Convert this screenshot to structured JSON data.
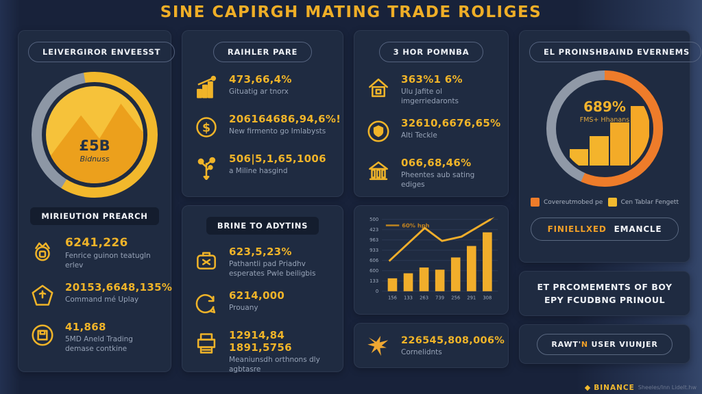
{
  "title": "SINE CAPIRGH MATING TRADE ROLIGES",
  "colors": {
    "background": "#18223a",
    "card": "#1f2b41",
    "accent_yellow": "#f0b429",
    "accent_orange": "#ee7c2a",
    "ring_gray": "#8d97a5",
    "label_gray": "#97a3b7"
  },
  "col1": {
    "header": "LEIVERGIROR ENVEESST",
    "donut": {
      "center_value": "£5B",
      "center_label": "Bidnuss"
    },
    "section2": "MIRIEUTION PREARCH",
    "stats": [
      {
        "icon": "crown-badge-icon",
        "value": "6241,226",
        "label": "Fenrice guinon teatugln erlev"
      },
      {
        "icon": "pentagon-shield-icon",
        "value": "20153,6648,135%",
        "label": "Command mé Uplay"
      },
      {
        "icon": "floppy-circle-icon",
        "value": "41,868",
        "label": "5MD Aneld Trading demase contkine"
      }
    ]
  },
  "col2": {
    "header": "RAIHLER PARE",
    "stats": [
      {
        "icon": "bar-chart-flag-icon",
        "value": "473,66,4%",
        "label": "Gituatig ar tnorx"
      },
      {
        "icon": "dollar-coin-icon",
        "value": "206164686,94,6%!",
        "label": "New firmento go Imlabysts"
      },
      {
        "icon": "sprout-icon",
        "value": "506|5,1,65,1006",
        "label": "a Miline hasgind"
      }
    ],
    "section2": "BRINE TO ADYTINS",
    "stats2": [
      {
        "icon": "briefcase-icon",
        "value": "623,5,23%",
        "label": "Pathantli pad Priadhv esperates Pwle beiligbis"
      },
      {
        "icon": "refresh-arrows-icon",
        "value": "6214,000",
        "label": "Prouany"
      },
      {
        "icon": "printer-icon",
        "value": "12914,84 1891,5756",
        "label": "Meaniunsdh orthnons dly agbtasre"
      }
    ]
  },
  "col3": {
    "header": "3 HOR POMNBA",
    "stats": [
      {
        "icon": "house-icon",
        "value": "363%1 6%",
        "label": "Ulu Jafite ol imgerriedaronts"
      },
      {
        "icon": "coin-shield-icon",
        "value": "32610,6676,65%",
        "label": "Alti Teckle"
      },
      {
        "icon": "bank-icon",
        "value": "066,68,46%",
        "label": "Pheentes aub sating ediges"
      }
    ],
    "bottom_stat": {
      "icon": "eagle-icon",
      "value": "226545,808,006%",
      "label": "Cornelidnts"
    }
  },
  "chart_data": {
    "type": "bar+line",
    "title": "",
    "legend": "60% hph",
    "legend_position": "top-left",
    "grid": true,
    "ylim": [
      0,
      500
    ],
    "y_ticks": [
      "0",
      "133",
      "600",
      "606",
      "933",
      "963",
      "423",
      "500"
    ],
    "x_labels": [
      "156",
      "133",
      "263",
      "739",
      "256",
      "291",
      "308"
    ],
    "series": [
      {
        "name": "bars",
        "type": "bar",
        "values": [
          90,
          125,
          165,
          150,
          235,
          315,
          410
        ]
      },
      {
        "name": "trend",
        "type": "line",
        "x_frac": [
          0.03,
          0.36,
          0.52,
          0.7,
          0.97
        ],
        "values": [
          210,
          440,
          350,
          380,
          500
        ]
      }
    ]
  },
  "col4": {
    "header": "EL PROINSHBAIND EVERNEMS",
    "donut": {
      "center_value": "689%",
      "center_label": "FMS+ Hhanans"
    },
    "legend": [
      {
        "color": "#ee7c2a",
        "label": "Covereutmobed pe"
      },
      {
        "color": "#f3ba2f",
        "label": "Cen Tablar Fengett"
      }
    ],
    "button1": {
      "part1": "FINIELLXED",
      "part2": "EMANCLE"
    },
    "panel_line1": "ET PRCOMEMENTS OF BOY",
    "panel_line2": "EPY FCUDBNG PRINOUL",
    "button2": {
      "part1": "RAWT'",
      "part2": "N",
      "part3": " USER VIUNJER"
    }
  },
  "footer": {
    "brand": "BINANCE",
    "tagline": "Sheeles/Inn Lidelt.hw"
  }
}
